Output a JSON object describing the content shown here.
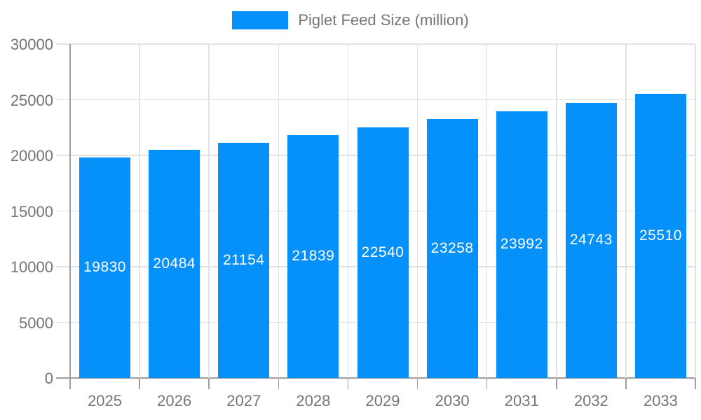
{
  "legend": {
    "label": "Piglet Feed Size (million)"
  },
  "chart_data": {
    "type": "bar",
    "title": "Piglet Feed Size (million)",
    "series_name": "Piglet Feed Size (million)",
    "categories": [
      "2025",
      "2026",
      "2027",
      "2028",
      "2029",
      "2030",
      "2031",
      "2032",
      "2033"
    ],
    "values": [
      19830,
      20484,
      21154,
      21839,
      22540,
      23258,
      23992,
      24743,
      25510
    ],
    "xlabel": "",
    "ylabel": "",
    "ylim": [
      0,
      30000
    ],
    "yticks": [
      0,
      5000,
      10000,
      15000,
      20000,
      25000,
      30000
    ],
    "grid": true,
    "legend_position": "top",
    "colors": {
      "bar": "#0590FA",
      "bar_value_label": "#ffffff",
      "axis_line": "#9e9e9e",
      "gridline": "#e2e2e2",
      "tick_text": "#757575",
      "background": "#ffffff"
    }
  }
}
